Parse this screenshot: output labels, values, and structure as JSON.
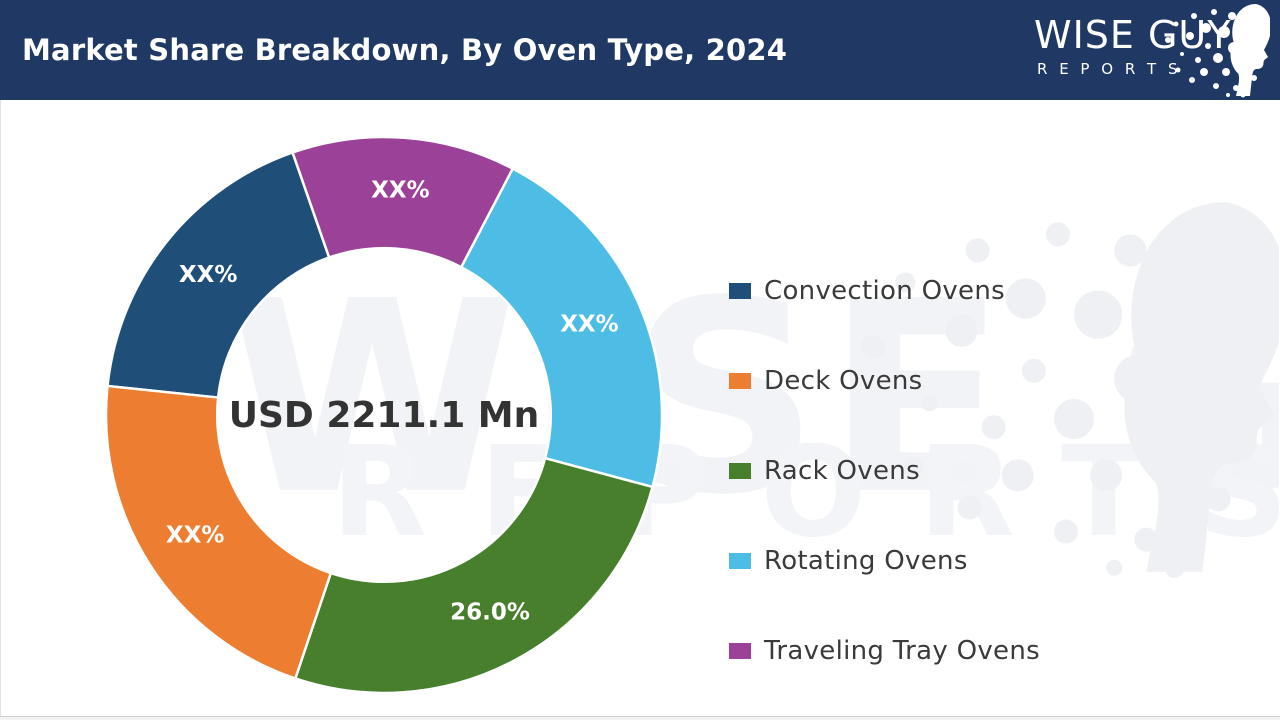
{
  "header": {
    "title": "Market Share Breakdown, By Oven Type, 2024",
    "background_color": "#1f3864",
    "logo": {
      "line1": "WISE GUY",
      "line2": "R E P O R T S"
    }
  },
  "watermark": {
    "line1": "WISE GUY",
    "line2": "REPORTS"
  },
  "chart_data": {
    "type": "donut",
    "title": "Market Share Breakdown, By Oven Type, 2024",
    "center_label": "USD 2211.1 Mn",
    "start_angle_deg": 276,
    "inner_radius_ratio": 0.6,
    "legend_position": "right",
    "segments": [
      {
        "label": "Convection Ovens",
        "display_value": "XX%",
        "percent_est": 18.0,
        "color": "#1f4e79"
      },
      {
        "label": "Traveling Tray Ovens",
        "display_value": "XX%",
        "percent_est": 13.0,
        "color": "#9c4198"
      },
      {
        "label": "Rotating Ovens",
        "display_value": "XX%",
        "percent_est": 21.5,
        "color": "#4dbde6"
      },
      {
        "label": "Rack Ovens",
        "display_value": "26.0%",
        "percent_est": 26.0,
        "color": "#477f2d"
      },
      {
        "label": "Deck Ovens",
        "display_value": "XX%",
        "percent_est": 21.5,
        "color": "#ed7d31"
      }
    ],
    "legend_order": [
      "Convection Ovens",
      "Deck Ovens",
      "Rack Ovens",
      "Rotating Ovens",
      "Traveling Tray Ovens"
    ]
  }
}
